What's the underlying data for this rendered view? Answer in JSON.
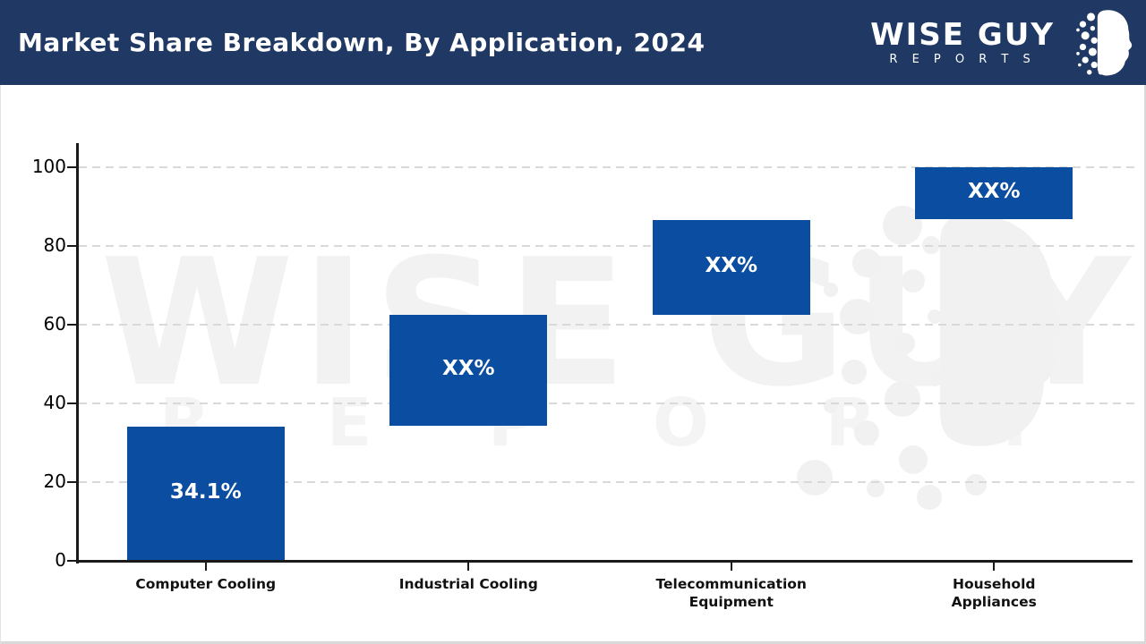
{
  "header": {
    "title": "Market Share Breakdown, By Application, 2024",
    "bg_color": "#1f3864",
    "logo": {
      "name": "WISE GUY",
      "subtitle": "R E P O R T S"
    }
  },
  "watermark": {
    "line1": "WISE GUY",
    "line2": "R E P O R T S"
  },
  "chart_data": {
    "type": "bar",
    "variant": "floating-range-bars (waterfall-style market share chart)",
    "title": "Market Share Breakdown, By Application, 2024",
    "categories": [
      "Computer Cooling",
      "Industrial Cooling",
      "Telecommunication Equipment",
      "Household Appliances"
    ],
    "categories_wrapped": [
      [
        "Computer Cooling"
      ],
      [
        "Industrial Cooling"
      ],
      [
        "Telecommunication",
        "Equipment"
      ],
      [
        "Household",
        "Appliances"
      ]
    ],
    "bars": [
      {
        "category": "Computer Cooling",
        "label": "34.1%",
        "from": 0,
        "to": 34.1
      },
      {
        "category": "Industrial Cooling",
        "label": "XX%",
        "from": 34.3,
        "to": 62.5
      },
      {
        "category": "Telecommunication Equipment",
        "label": "XX%",
        "from": 62.5,
        "to": 86.6
      },
      {
        "category": "Household Appliances",
        "label": "XX%",
        "from": 86.8,
        "to": 100
      }
    ],
    "xlabel": "",
    "ylabel": "",
    "ylim": [
      0,
      105
    ],
    "yticks": [
      0,
      20,
      40,
      60,
      80,
      100
    ],
    "bar_color": "#0b4da1",
    "bar_label_color": "#ffffff",
    "grid": {
      "horizontal": true,
      "style": "dashed",
      "color": "#d9d9d9"
    },
    "legend": "none"
  }
}
